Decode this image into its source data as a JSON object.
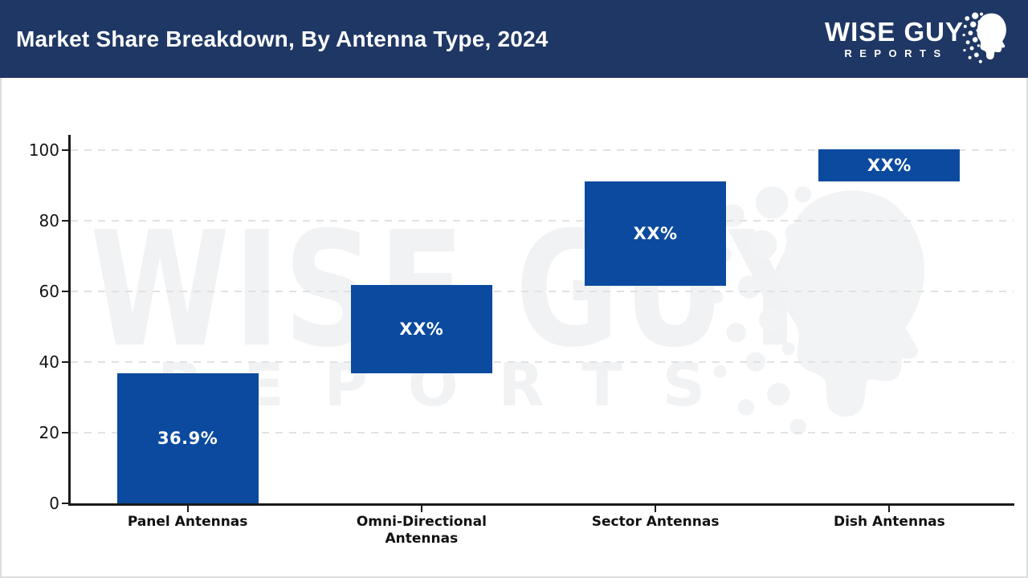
{
  "header": {
    "title": "Market Share Breakdown, By Antenna Type, 2024",
    "logo": {
      "line1": "WISE GUY",
      "line2": "REPORTS"
    }
  },
  "watermark": {
    "line1": "WISE GUY",
    "line2": "REPORTS"
  },
  "chart_data": {
    "type": "bar",
    "subtype": "floating-waterfall-columns",
    "title": "Market Share Breakdown, By Antenna Type, 2024",
    "categories": [
      "Panel Antennas",
      "Omni-Directional Antennas",
      "Sector Antennas",
      "Dish Antennas"
    ],
    "bars": [
      {
        "category": "Panel Antennas",
        "label": "36.9%",
        "start": 0,
        "end": 36.9
      },
      {
        "category": "Omni-Directional Antennas",
        "label": "XX%",
        "start": 36.9,
        "end": 61.8
      },
      {
        "category": "Sector Antennas",
        "label": "XX%",
        "start": 61.6,
        "end": 91.2
      },
      {
        "category": "Dish Antennas",
        "label": "XX%",
        "start": 91.1,
        "end": 100.2
      }
    ],
    "y_ticks": [
      0,
      20,
      40,
      60,
      80,
      100
    ],
    "ylim": [
      0,
      104.5
    ],
    "xlabel": "",
    "ylabel": "",
    "grid": "horizontal-dashed",
    "legend": "none",
    "bar_color": "#0B4A9E",
    "bar_label_color": "#FFFFFF"
  },
  "colors": {
    "header_bg": "#1F3764",
    "bar": "#0B4A9E",
    "gridline": "#E2E2E2",
    "axis": "#1A1A1A",
    "watermark": "#F1F2F4",
    "frame_border": "#DBDDDF"
  }
}
